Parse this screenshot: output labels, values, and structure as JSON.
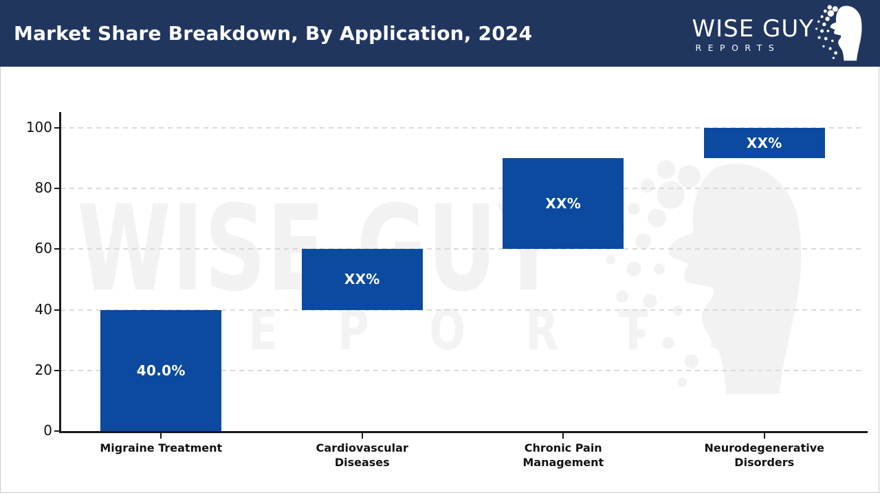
{
  "header": {
    "title": "Market Share Breakdown, By Application, 2024",
    "bg_color": "#21365f",
    "logo": {
      "line1": "WISE GUY",
      "line2": "REPORTS"
    }
  },
  "watermark": {
    "line1": "WISE GUY",
    "line2": "R E P O R T S"
  },
  "chart_data": {
    "type": "bar",
    "subtype": "waterfall",
    "title": "Market Share Breakdown, By Application, 2024",
    "categories": [
      "Migraine Treatment",
      "Cardiovascular Diseases",
      "Chronic Pain Management",
      "Neurodegenerative Disorders"
    ],
    "values": [
      40,
      20,
      30,
      10
    ],
    "segments": [
      {
        "category": "Migraine Treatment",
        "label_lines": [
          "Migraine Treatment"
        ],
        "start": 0,
        "end": 40,
        "value_label": "40.0%"
      },
      {
        "category": "Cardiovascular Diseases",
        "label_lines": [
          "Cardiovascular",
          "Diseases"
        ],
        "start": 40,
        "end": 60,
        "value_label": "XX%"
      },
      {
        "category": "Chronic Pain Management",
        "label_lines": [
          "Chronic Pain",
          "Management"
        ],
        "start": 60,
        "end": 90,
        "value_label": "XX%"
      },
      {
        "category": "Neurodegenerative Disorders",
        "label_lines": [
          "Neurodegenerative",
          "Disorders"
        ],
        "start": 90,
        "end": 100,
        "value_label": "XX%"
      }
    ],
    "xlabel": "",
    "ylabel": "",
    "ylim": [
      0,
      100
    ],
    "yticks": [
      0,
      20,
      40,
      60,
      80,
      100
    ],
    "grid": "horizontal-dashed",
    "legend": "none",
    "bar_color": "#0b4a9f",
    "grid_color": "#d9d9d9",
    "axis_color": "#1a1a1a",
    "value_label_color": "#ffffff"
  }
}
